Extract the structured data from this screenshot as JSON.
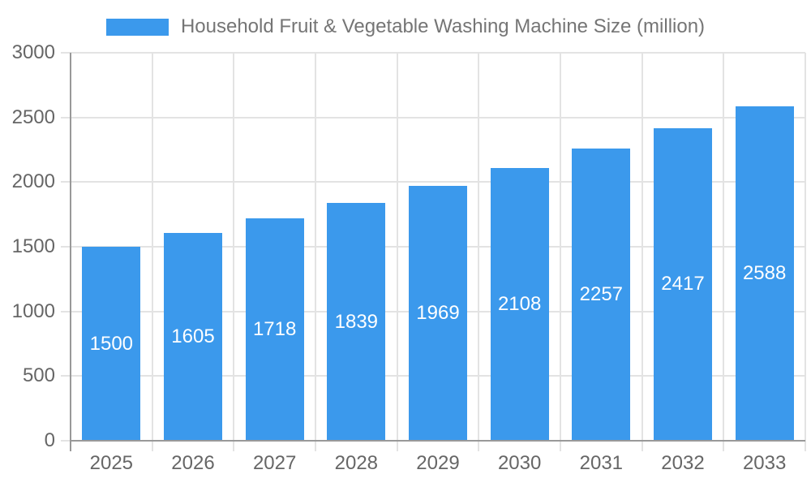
{
  "page": {
    "background": "#FFFFFF"
  },
  "chart_data": {
    "type": "bar",
    "series_name": "Household Fruit & Vegetable Washing Machine Size (million)",
    "categories": [
      "2025",
      "2026",
      "2027",
      "2028",
      "2029",
      "2030",
      "2031",
      "2032",
      "2033"
    ],
    "values": [
      1500,
      1605,
      1718,
      1839,
      1969,
      2108,
      2257,
      2417,
      2588
    ],
    "value_labels": [
      "1500",
      "1605",
      "1718",
      "1839",
      "1969",
      "2108",
      "2257",
      "2417",
      "2588"
    ],
    "ylim": [
      0,
      3000
    ],
    "yticks": [
      0,
      500,
      1000,
      1500,
      2000,
      2500,
      3000
    ],
    "ytick_labels": [
      "0",
      "500",
      "1000",
      "1500",
      "2000",
      "2500",
      "3000"
    ],
    "grid": true,
    "legend_position": "top",
    "colors": {
      "bar": "#3B99EC",
      "value_label": "#FFFFFF",
      "grid": "#E3E3E3",
      "axis": "#999999",
      "tick_label": "#666666",
      "legend_text": "#757575"
    }
  }
}
